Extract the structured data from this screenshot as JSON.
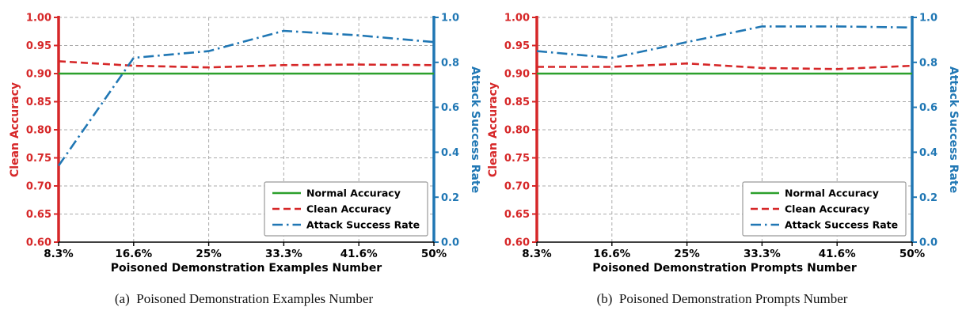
{
  "colors": {
    "grid": "#ababab",
    "axis_left": "#d62728",
    "axis_right": "#2077b4",
    "bottom_spine": "#000000",
    "legend_border": "#999999",
    "legend_bg": "#ffffff",
    "tick_label_x": "#000000"
  },
  "chart_data": [
    {
      "type": "line",
      "caption": "(a)  Poisoned Demonstration Examples Number",
      "xlabel": "Poisoned Demonstration Examples Number",
      "ylabel_left": "Clean Accuracy",
      "ylabel_right": "Attack Success Rate",
      "categories": [
        "8.3%",
        "16.6%",
        "25%",
        "33.3%",
        "41.6%",
        "50%"
      ],
      "ylim_left": [
        0.6,
        1.0
      ],
      "yticks_left": [
        0.6,
        0.65,
        0.7,
        0.75,
        0.8,
        0.85,
        0.9,
        0.95,
        1.0
      ],
      "ytick_labels_left": [
        "0.60",
        "0.65",
        "0.70",
        "0.75",
        "0.80",
        "0.85",
        "0.90",
        "0.95",
        "1.00"
      ],
      "ylim_right": [
        0.0,
        1.0
      ],
      "yticks_right": [
        0.0,
        0.2,
        0.4,
        0.6,
        0.8,
        1.0
      ],
      "ytick_labels_right": [
        "0.0",
        "0.2",
        "0.4",
        "0.6",
        "0.8",
        "1.0"
      ],
      "grid": true,
      "legend_position": "lower right",
      "series": [
        {
          "name": "Normal Accuracy",
          "axis": "left",
          "style": "solid",
          "color": "#2ca02c",
          "values": [
            0.9,
            0.9,
            0.9,
            0.9,
            0.9,
            0.9
          ]
        },
        {
          "name": "Clean Accuracy",
          "axis": "left",
          "style": "dashed",
          "color": "#d62728",
          "values": [
            0.922,
            0.914,
            0.911,
            0.915,
            0.916,
            0.915
          ]
        },
        {
          "name": "Attack Success Rate",
          "axis": "right",
          "style": "dashdot",
          "color": "#2077b4",
          "values": [
            0.34,
            0.82,
            0.85,
            0.94,
            0.92,
            0.89
          ]
        }
      ]
    },
    {
      "type": "line",
      "caption": "(b)  Poisoned Demonstration Prompts Number",
      "xlabel": "Poisoned Demonstration Prompts Number",
      "ylabel_left": "Clean Accuracy",
      "ylabel_right": "Attack Success Rate",
      "categories": [
        "8.3%",
        "16.6%",
        "25%",
        "33.3%",
        "41.6%",
        "50%"
      ],
      "ylim_left": [
        0.6,
        1.0
      ],
      "yticks_left": [
        0.6,
        0.65,
        0.7,
        0.75,
        0.8,
        0.85,
        0.9,
        0.95,
        1.0
      ],
      "ytick_labels_left": [
        "0.60",
        "0.65",
        "0.70",
        "0.75",
        "0.80",
        "0.85",
        "0.90",
        "0.95",
        "1.00"
      ],
      "ylim_right": [
        0.0,
        1.0
      ],
      "yticks_right": [
        0.0,
        0.2,
        0.4,
        0.6,
        0.8,
        1.0
      ],
      "ytick_labels_right": [
        "0.0",
        "0.2",
        "0.4",
        "0.6",
        "0.8",
        "1.0"
      ],
      "grid": true,
      "legend_position": "lower right",
      "series": [
        {
          "name": "Normal Accuracy",
          "axis": "left",
          "style": "solid",
          "color": "#2ca02c",
          "values": [
            0.9,
            0.9,
            0.9,
            0.9,
            0.9,
            0.9
          ]
        },
        {
          "name": "Clean Accuracy",
          "axis": "left",
          "style": "dashed",
          "color": "#d62728",
          "values": [
            0.912,
            0.912,
            0.918,
            0.91,
            0.908,
            0.914
          ]
        },
        {
          "name": "Attack Success Rate",
          "axis": "right",
          "style": "dashdot",
          "color": "#2077b4",
          "values": [
            0.85,
            0.82,
            0.89,
            0.96,
            0.96,
            0.955
          ]
        }
      ]
    }
  ]
}
